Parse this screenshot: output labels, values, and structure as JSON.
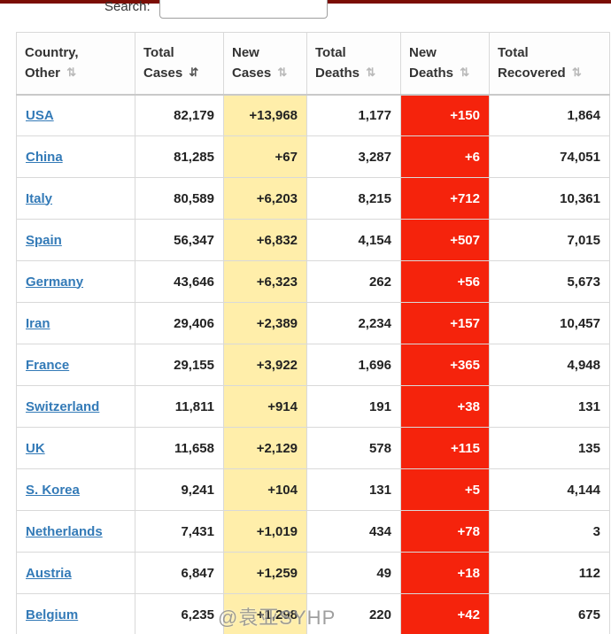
{
  "search": {
    "label": "Search:",
    "value": ""
  },
  "table": {
    "columns": [
      {
        "key": "country",
        "line1": "Country,",
        "line2": "Other",
        "icon": "sort-both"
      },
      {
        "key": "total-cases",
        "line1": "Total",
        "line2": "Cases",
        "icon": "sort-desc-active"
      },
      {
        "key": "new-cases",
        "line1": "New",
        "line2": "Cases",
        "icon": "sort-both"
      },
      {
        "key": "total-deaths",
        "line1": "Total",
        "line2": "Deaths",
        "icon": "sort-both"
      },
      {
        "key": "new-deaths",
        "line1": "New",
        "line2": "Deaths",
        "icon": "sort-both"
      },
      {
        "key": "total-recovered",
        "line1": "Total",
        "line2": "Recovered",
        "icon": "sort-both"
      }
    ],
    "rows": [
      {
        "country": "USA",
        "total_cases": "82,179",
        "new_cases": "+13,968",
        "total_deaths": "1,177",
        "new_deaths": "+150",
        "total_recovered": "1,864"
      },
      {
        "country": "China",
        "total_cases": "81,285",
        "new_cases": "+67",
        "total_deaths": "3,287",
        "new_deaths": "+6",
        "total_recovered": "74,051"
      },
      {
        "country": "Italy",
        "total_cases": "80,589",
        "new_cases": "+6,203",
        "total_deaths": "8,215",
        "new_deaths": "+712",
        "total_recovered": "10,361"
      },
      {
        "country": "Spain",
        "total_cases": "56,347",
        "new_cases": "+6,832",
        "total_deaths": "4,154",
        "new_deaths": "+507",
        "total_recovered": "7,015"
      },
      {
        "country": "Germany",
        "total_cases": "43,646",
        "new_cases": "+6,323",
        "total_deaths": "262",
        "new_deaths": "+56",
        "total_recovered": "5,673"
      },
      {
        "country": "Iran",
        "total_cases": "29,406",
        "new_cases": "+2,389",
        "total_deaths": "2,234",
        "new_deaths": "+157",
        "total_recovered": "10,457"
      },
      {
        "country": "France",
        "total_cases": "29,155",
        "new_cases": "+3,922",
        "total_deaths": "1,696",
        "new_deaths": "+365",
        "total_recovered": "4,948"
      },
      {
        "country": "Switzerland",
        "total_cases": "11,811",
        "new_cases": "+914",
        "total_deaths": "191",
        "new_deaths": "+38",
        "total_recovered": "131"
      },
      {
        "country": "UK",
        "total_cases": "11,658",
        "new_cases": "+2,129",
        "total_deaths": "578",
        "new_deaths": "+115",
        "total_recovered": "135"
      },
      {
        "country": "S. Korea",
        "total_cases": "9,241",
        "new_cases": "+104",
        "total_deaths": "131",
        "new_deaths": "+5",
        "total_recovered": "4,144"
      },
      {
        "country": "Netherlands",
        "total_cases": "7,431",
        "new_cases": "+1,019",
        "total_deaths": "434",
        "new_deaths": "+78",
        "total_recovered": "3"
      },
      {
        "country": "Austria",
        "total_cases": "6,847",
        "new_cases": "+1,259",
        "total_deaths": "49",
        "new_deaths": "+18",
        "total_recovered": "112"
      },
      {
        "country": "Belgium",
        "total_cases": "6,235",
        "new_cases": "+1,298",
        "total_deaths": "220",
        "new_deaths": "+42",
        "total_recovered": "675"
      }
    ]
  },
  "watermark": {
    "text": "@袁亚SYHP"
  },
  "colors": {
    "new_cases_bg": "#ffeeaa",
    "new_deaths_bg": "#f5230c",
    "new_deaths_text": "#ffffff",
    "link": "#337ab7",
    "topbar": "#7b0e05"
  }
}
